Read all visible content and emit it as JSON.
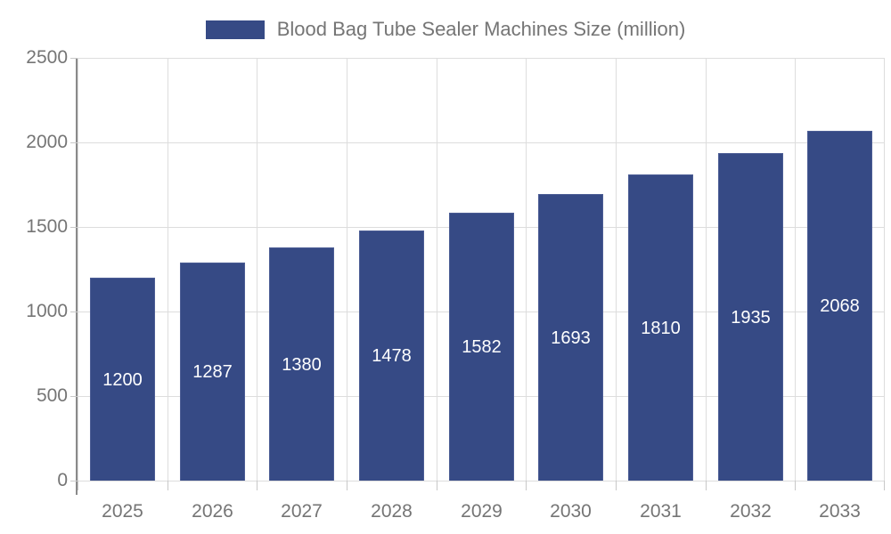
{
  "chart_data": {
    "type": "bar",
    "title": "Blood Bag Tube Sealer Machines Size (million)",
    "legend": {
      "position": "top",
      "entries": [
        "Blood Bag Tube Sealer Machines Size (million)"
      ]
    },
    "categories": [
      "2025",
      "2026",
      "2027",
      "2028",
      "2029",
      "2030",
      "2031",
      "2032",
      "2033"
    ],
    "values": [
      1200,
      1287,
      1380,
      1478,
      1582,
      1693,
      1810,
      1935,
      2068
    ],
    "xlabel": "",
    "ylabel": "",
    "ylim": [
      0,
      2500
    ],
    "yticks": [
      0,
      500,
      1000,
      1500,
      2000,
      2500
    ],
    "grid": true,
    "value_labels": "centered-inside-bars"
  },
  "colors": {
    "bar_fill": "#364A85",
    "bar_border": "#4C5D95",
    "value_label_text": "#ffffff",
    "axis_label_text": "#757575",
    "legend_text": "#757575",
    "gridline": "#DDDDDD",
    "axis_line": "#8A8A8A",
    "tick_mark": "#C8C8C8",
    "background": "#ffffff"
  }
}
